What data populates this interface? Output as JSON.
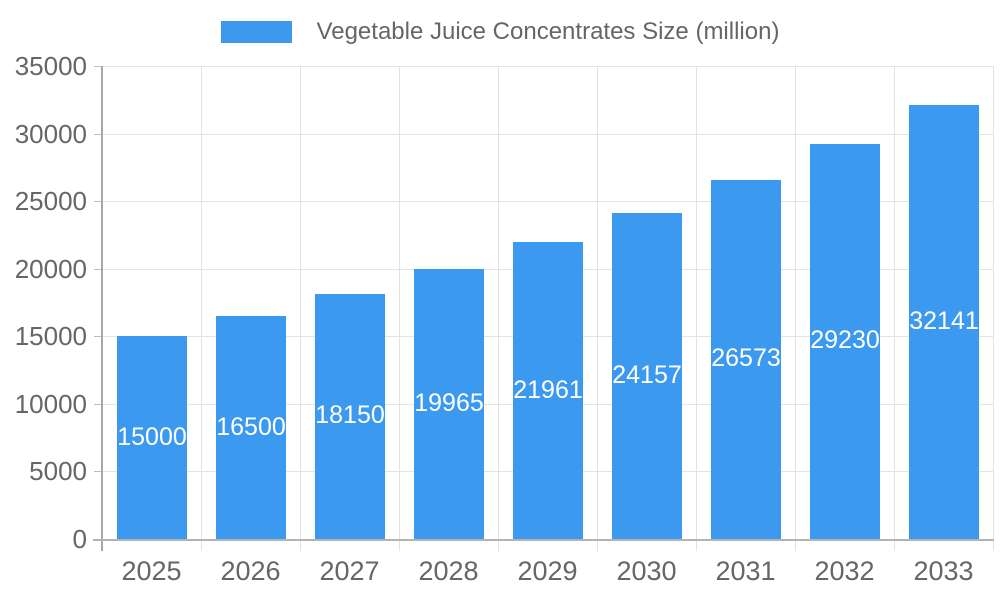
{
  "chart_data": {
    "type": "bar",
    "title": "Vegetable Juice Concentrates Size (million)",
    "categories": [
      "2025",
      "2026",
      "2027",
      "2028",
      "2029",
      "2030",
      "2031",
      "2032",
      "2033"
    ],
    "series": [
      {
        "name": "Vegetable Juice Concentrates Size (million)",
        "values": [
          15000,
          16500,
          18150,
          19965,
          21961,
          24157,
          26573,
          29230,
          32141
        ]
      }
    ],
    "value_labels_shown": true,
    "xlabel": "",
    "ylabel": "",
    "ylim": [
      0,
      35000
    ],
    "yticks": [
      0,
      5000,
      10000,
      15000,
      20000,
      25000,
      30000,
      35000
    ],
    "grid": "on",
    "legend_position": "top-center",
    "colors": {
      "bar": "#3b99ef",
      "value_label": "#ffffff",
      "axis_text": "#666666",
      "legend_text": "#666666",
      "gridline": "#e4e4e4",
      "axis_line": "#aaaaaa"
    }
  }
}
